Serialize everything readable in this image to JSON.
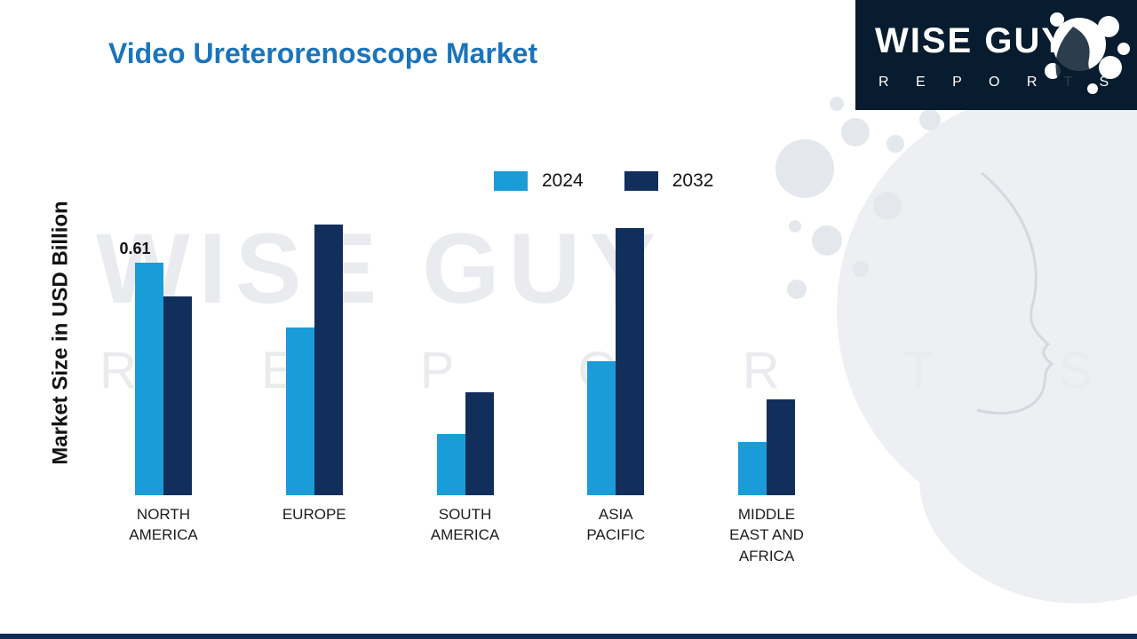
{
  "page": {
    "title": "Video Ureterorenoscope Market"
  },
  "branding": {
    "logo_line1": "WISE GUY",
    "logo_line2": "R E P O R T S",
    "watermark_line1": "WISE GUY",
    "watermark_line2": "R E P O R T S"
  },
  "colors": {
    "title": "#1b74bb",
    "series_2024": "#1a9cd8",
    "series_2032": "#122f5c",
    "logo_background": "#071c2e",
    "footer_bar": "#102c56",
    "watermark": "#e9ebee"
  },
  "chart_data": {
    "type": "bar",
    "title": "Video Ureterorenoscope Market",
    "ylabel": "Market Size in USD Billion",
    "xlabel": "",
    "categories": [
      "NORTH AMERICA",
      "EUROPE",
      "SOUTH AMERICA",
      "ASIA PACIFIC",
      "MIDDLE EAST AND AFRICA"
    ],
    "series": [
      {
        "name": "2024",
        "color": "#1a9cd8",
        "values": [
          0.61,
          0.44,
          0.16,
          0.35,
          0.14
        ]
      },
      {
        "name": "2032",
        "color": "#122f5c",
        "values": [
          0.52,
          0.71,
          0.27,
          0.7,
          0.25
        ]
      }
    ],
    "annotations": [
      {
        "series_index": 0,
        "category_index": 0,
        "text": "0.61"
      }
    ],
    "ylim": [
      0,
      0.8
    ],
    "legend_position": "top",
    "grid": false
  }
}
